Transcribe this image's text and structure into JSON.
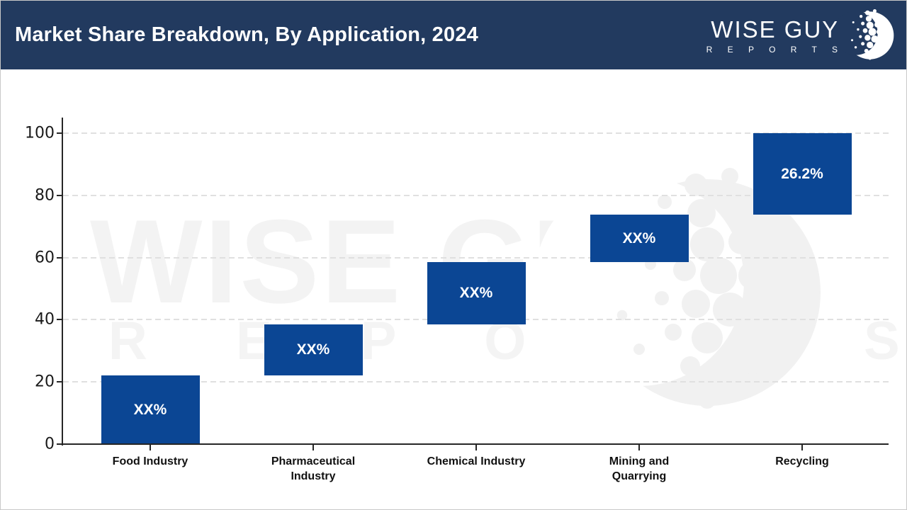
{
  "page": {
    "background": "#ffffff",
    "border_color": "#c9c9c9"
  },
  "header": {
    "title": "Market Share Breakdown, By Application, 2024",
    "bg_color": "#223a5f",
    "logo": {
      "name": "WISE GUY",
      "tagline": "R E P O R T S"
    }
  },
  "watermark": {
    "line1": "WISE GUY",
    "line2": "R E P O R T S"
  },
  "chart_data": {
    "type": "bar",
    "variant": "waterfall-floating-bars",
    "title": "Market Share Breakdown, By Application, 2024",
    "categories": [
      "Food Industry",
      "Pharmaceutical Industry",
      "Chemical Industry",
      "Mining and Quarrying",
      "Recycling"
    ],
    "x_label_lines": [
      [
        "Food Industry"
      ],
      [
        "Pharmaceutical",
        "Industry"
      ],
      [
        "Chemical Industry"
      ],
      [
        "Mining and",
        "Quarrying"
      ],
      [
        "Recycling"
      ]
    ],
    "segments": [
      {
        "category": "Food Industry",
        "start": 0,
        "end": 22,
        "label": "XX%"
      },
      {
        "category": "Pharmaceutical Industry",
        "start": 22,
        "end": 38.5,
        "label": "XX%"
      },
      {
        "category": "Chemical Industry",
        "start": 38.5,
        "end": 58.5,
        "label": "XX%"
      },
      {
        "category": "Mining and Quarrying",
        "start": 58.5,
        "end": 73.8,
        "label": "XX%"
      },
      {
        "category": "Recycling",
        "start": 73.8,
        "end": 100,
        "label": "26.2%"
      }
    ],
    "yticks": [
      0,
      20,
      40,
      60,
      80,
      100
    ],
    "ylim": [
      0,
      105
    ],
    "xlabel": "",
    "ylabel": "",
    "legend": null,
    "grid": {
      "horizontal": true,
      "style": "dashed",
      "color": "#e0e0e0"
    },
    "bar_color": "#0b4694",
    "bar_label_color": "#ffffff",
    "axis_color": "#262626"
  }
}
